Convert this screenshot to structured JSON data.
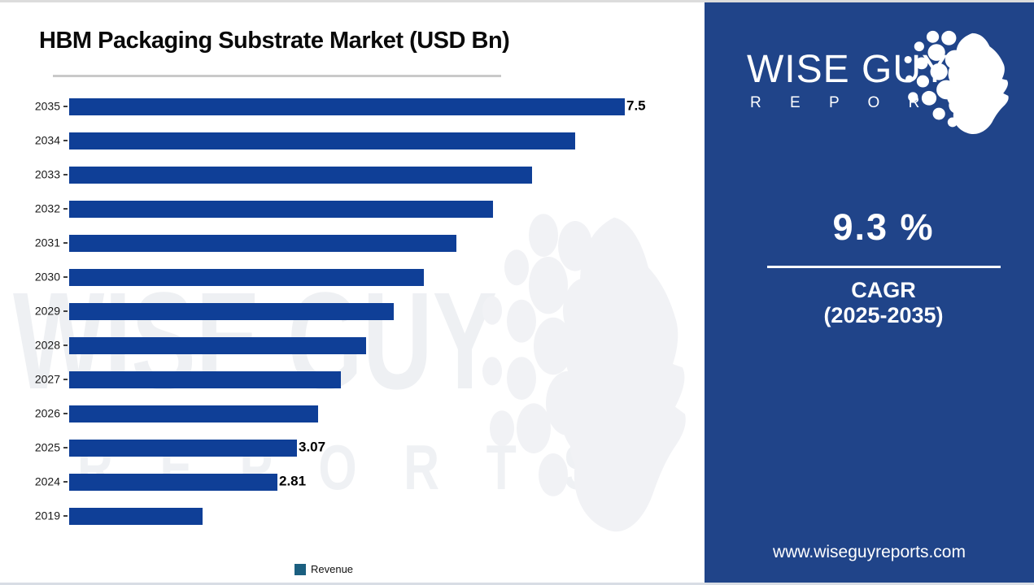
{
  "title": "HBM Packaging Substrate Market (USD Bn)",
  "chart_data": {
    "type": "bar",
    "orientation": "horizontal",
    "title": "HBM Packaging Substrate Market (USD Bn)",
    "xlabel": "",
    "ylabel": "",
    "xlim": [
      0,
      7.5
    ],
    "grid": false,
    "legend_position": "bottom",
    "categories": [
      "2035",
      "2034",
      "2033",
      "2032",
      "2031",
      "2030",
      "2029",
      "2028",
      "2027",
      "2026",
      "2025",
      "2024",
      "2019"
    ],
    "series": [
      {
        "name": "Revenue",
        "values": [
          7.5,
          6.83,
          6.25,
          5.72,
          5.23,
          4.79,
          4.38,
          4.01,
          3.67,
          3.36,
          3.07,
          2.81,
          1.8
        ],
        "shown_value_labels": [
          "7.5",
          "",
          "",
          "",
          "",
          "",
          "",
          "",
          "",
          "",
          "3.07",
          "2.81",
          ""
        ]
      }
    ],
    "bar_color": "#0f3f97",
    "legend_swatch_color": "#1b5f80"
  },
  "legend": {
    "label": "Revenue"
  },
  "watermark": {
    "line1": "WISE GUY",
    "line2": "R E P O R T S"
  },
  "sidebar": {
    "background_color": "#204489",
    "logo": {
      "line1": "WISE GUY",
      "line2": "R E P O R T S",
      "mark": "head-profile-dots-icon"
    },
    "cagr_value": "9.3 %",
    "cagr_label_line1": "CAGR",
    "cagr_label_line2": "(2025-2035)",
    "website": "www.wiseguyreports.com"
  }
}
